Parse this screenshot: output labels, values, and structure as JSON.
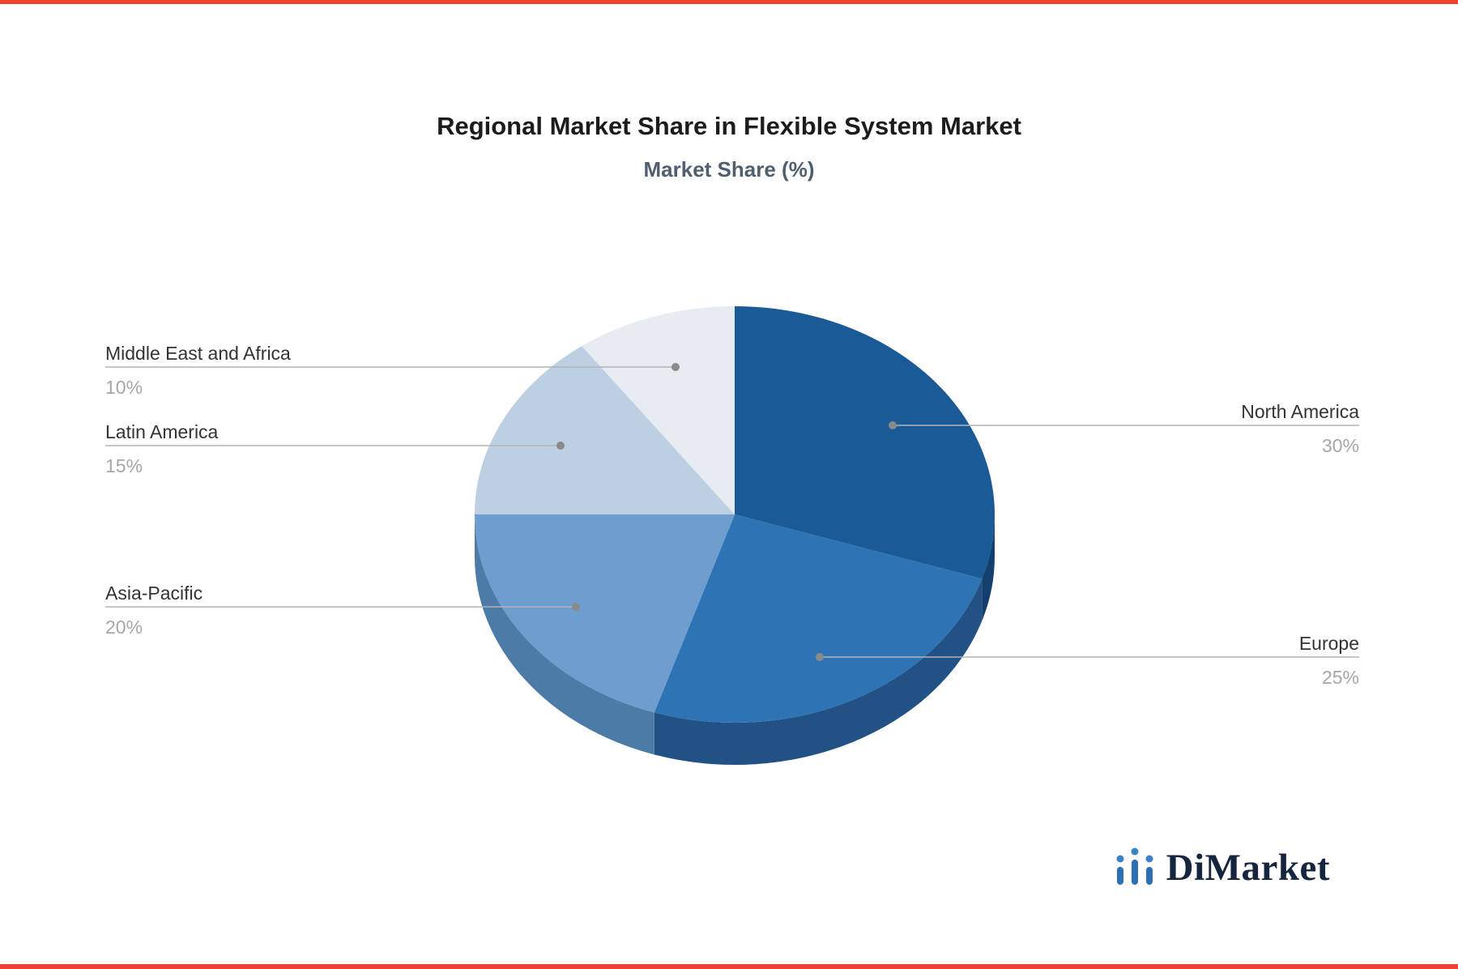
{
  "page": {
    "background": "#ffffff",
    "accent_color": "#ef4130"
  },
  "chart_data": {
    "type": "pie",
    "style": "3d",
    "title": "Regional Market Share in Flexible System Market",
    "subtitle": "Market Share (%)",
    "labels": [
      "North America",
      "Europe",
      "Asia-Pacific",
      "Latin America",
      "Middle East and Africa"
    ],
    "values": [
      30,
      25,
      20,
      15,
      10
    ],
    "value_labels": [
      "30%",
      "25%",
      "20%",
      "15%",
      "10%"
    ],
    "colors": [
      "#1a5a96",
      "#2e74b5",
      "#6d9ece",
      "#bdcfe2",
      "#e7ebf2"
    ],
    "depth_colors": [
      "#123f6b",
      "#215185",
      "#4c7ba7",
      "#8fa9c2",
      "#b9c4d2"
    ],
    "start_angle_deg": -90,
    "direction": "clockwise",
    "legend": "callout-labels",
    "label_color": "#333333",
    "value_label_color": "#a6a6a6",
    "leader_line_color": "#b3b3b3"
  },
  "branding": {
    "logo_text": "DiMarket",
    "logo_icon": "bar-chart-dots-icon",
    "logo_text_color": "#15253e",
    "logo_icon_color": "#2d6fb3"
  }
}
